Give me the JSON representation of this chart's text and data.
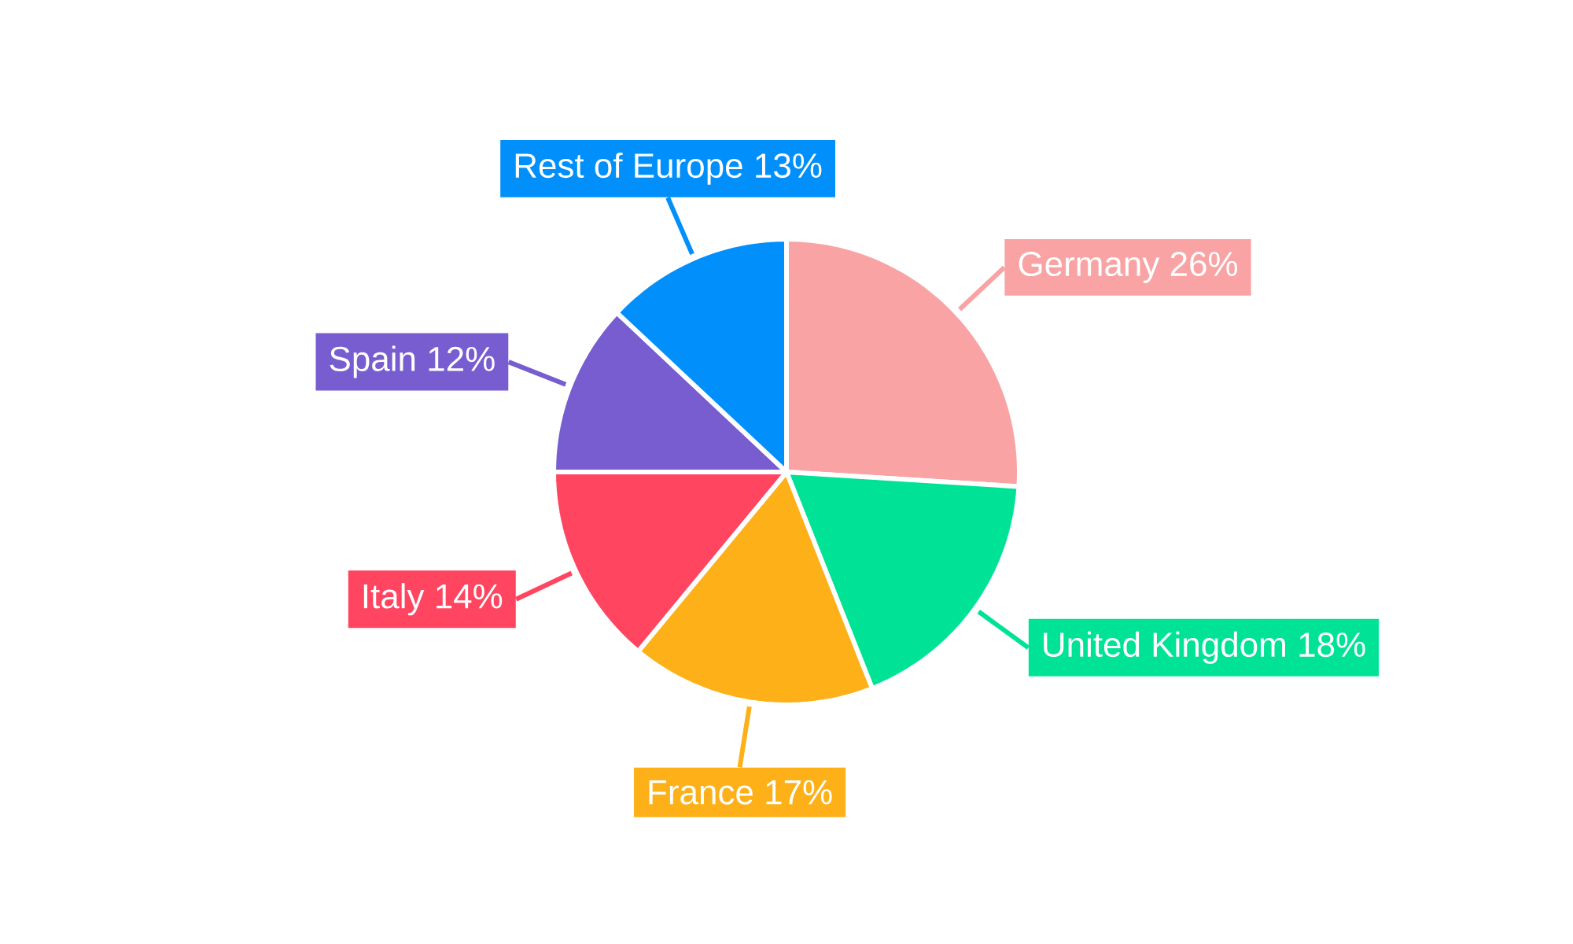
{
  "chart_data": {
    "type": "pie",
    "categories": [
      "Germany",
      "United Kingdom",
      "France",
      "Italy",
      "Spain",
      "Rest of Europe"
    ],
    "values": [
      26,
      18,
      17,
      14,
      12,
      13
    ],
    "value_labels": [
      "26%",
      "18%",
      "17%",
      "14%",
      "12%",
      "13%"
    ],
    "colors": [
      "#f9a3a4",
      "#00e396",
      "#feb019",
      "#ff4560",
      "#775dd0",
      "#008ffb"
    ]
  }
}
